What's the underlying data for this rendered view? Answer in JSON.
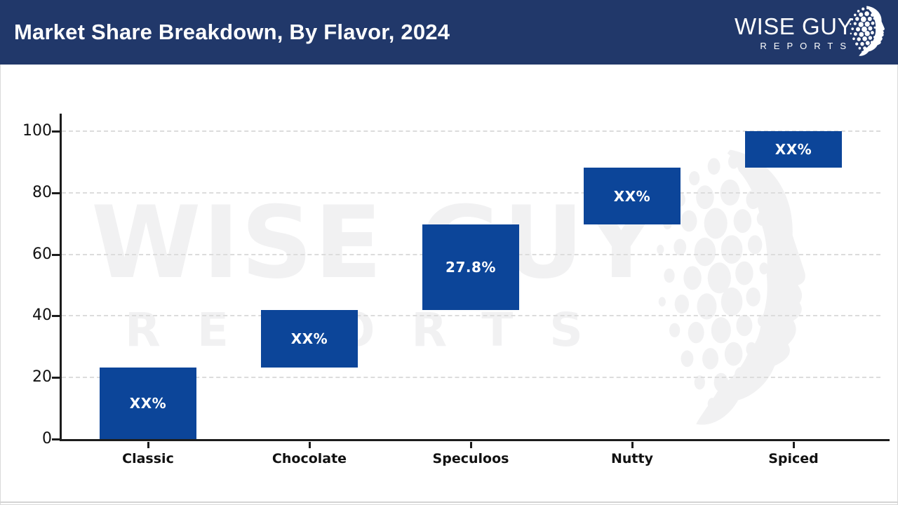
{
  "theme": {
    "header_bg": "#21386a",
    "bar_color": "#0c4599",
    "grid_color": "#dcdcdc",
    "axis_color": "#1c1c1c",
    "watermark_color": "#f1f1f2",
    "text_on_dark": "#ffffff"
  },
  "header": {
    "title": "Market Share Breakdown, By Flavor, 2024",
    "brand": {
      "line1": "WISE GUY",
      "line2": "REPORTS"
    }
  },
  "watermark": {
    "line1": "WISE GUY",
    "line2": "REPORTS"
  },
  "chart_data": {
    "type": "bar",
    "subtype": "floating-waterfall",
    "title": "Market Share Breakdown, By Flavor, 2024",
    "xlabel": "",
    "ylabel": "",
    "categories": [
      "Classic",
      "Chocolate",
      "Speculoos",
      "Nutty",
      "Spiced"
    ],
    "segments": [
      {
        "category": "Classic",
        "start": 0,
        "end": 23.3,
        "label": "XX%"
      },
      {
        "category": "Chocolate",
        "start": 23.3,
        "end": 41.8,
        "label": "XX%"
      },
      {
        "category": "Speculoos",
        "start": 41.8,
        "end": 69.6,
        "label": "27.8%"
      },
      {
        "category": "Nutty",
        "start": 69.6,
        "end": 88.1,
        "label": "XX%"
      },
      {
        "category": "Spiced",
        "start": 88.1,
        "end": 100,
        "label": "XX%"
      }
    ],
    "yticks": [
      0,
      20,
      40,
      60,
      80,
      100
    ],
    "ylim": [
      0,
      105
    ],
    "grid": "horizontal-dashed",
    "legend": "none",
    "bar_color": "#0c4599"
  }
}
